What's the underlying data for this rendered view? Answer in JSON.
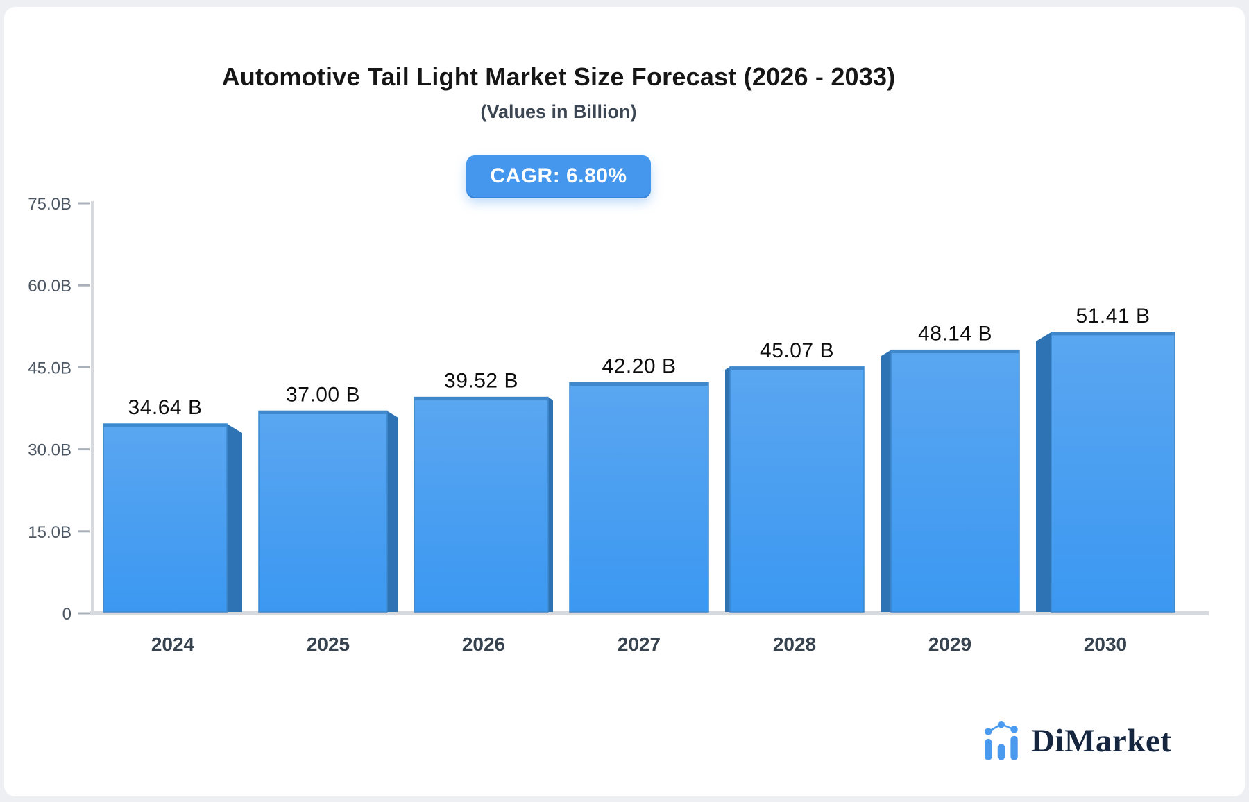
{
  "header": {
    "title": "Automotive Tail Light Market Size Forecast (2026 - 2033)",
    "subtitle": "(Values in Billion)"
  },
  "badge": {
    "label": "CAGR: 6.80%",
    "color": "#4597ed"
  },
  "chart_data": {
    "type": "bar",
    "title": "Automotive Tail Light Market Size Forecast (2026 - 2033)",
    "subtitle": "(Values in Billion)",
    "categories": [
      "2024",
      "2025",
      "2026",
      "2027",
      "2028",
      "2029",
      "2030"
    ],
    "values": [
      34.64,
      37.0,
      39.52,
      42.2,
      45.07,
      48.14,
      51.41
    ],
    "value_labels": [
      "34.64 B",
      "37.00 B",
      "39.52 B",
      "42.20 B",
      "45.07 B",
      "48.14 B",
      "51.41 B"
    ],
    "unit": "Billion",
    "xlabel": "",
    "ylabel": "",
    "ylim": [
      0,
      75
    ],
    "yticks": [
      {
        "value": 0,
        "label": "0"
      },
      {
        "value": 15,
        "label": "15.0B"
      },
      {
        "value": 30,
        "label": "30.0B"
      },
      {
        "value": 45,
        "label": "45.0B"
      },
      {
        "value": 60,
        "label": "60.0B"
      },
      {
        "value": 75,
        "label": "75.0B"
      }
    ],
    "grid": "off",
    "legend": "none",
    "style": {
      "effect": "3d-bars-center-perspective",
      "bar_face_top": "#5aa6f1",
      "bar_face_bottom": "#3b98f1",
      "bar_side": "#2e74b4",
      "bar_edge": "#3e88cb",
      "axis_line": "#d6d9de",
      "tick_dash": "#aab0b9",
      "ytick_text": "#4c5662",
      "xtick_text": "#37424f",
      "value_text": "#0d0d0d"
    }
  },
  "logo": {
    "text": "DiMarket",
    "icon": "mini-bar-chart-logo-icon",
    "icon_color": "#4a9bef",
    "text_color": "#16263f"
  }
}
